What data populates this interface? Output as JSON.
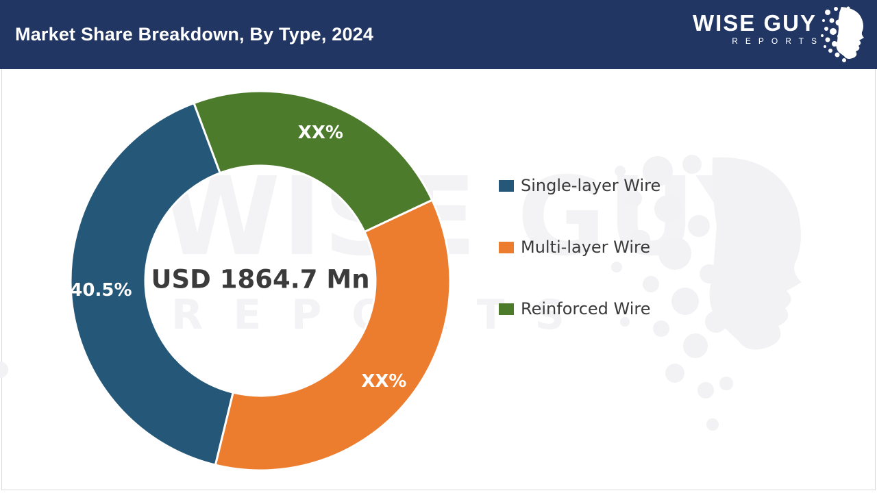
{
  "header": {
    "title": "Market Share Breakdown, By Type, 2024",
    "bg_color": "#223663",
    "logo": {
      "line1": "WISE GUY",
      "line2": "REPORTS"
    }
  },
  "chart_data": {
    "type": "pie",
    "subtype": "donut",
    "center_label": "USD 1864.7 Mn",
    "start_angle_deg": 110.5,
    "direction": "counterclockwise",
    "legend_position": "right",
    "series": [
      {
        "label": "Single-layer Wire",
        "value_pct": 40.5,
        "display_label": "40.5%",
        "color": "#255878"
      },
      {
        "label": "Multi-layer Wire",
        "value_pct": 35.8,
        "display_label": "XX%",
        "color": "#EC7D2F"
      },
      {
        "label": "Reinforced Wire",
        "value_pct": 23.7,
        "display_label": "XX%",
        "color": "#4D7B2C"
      }
    ],
    "note_colors": {
      "slice_gap_stroke": "#ffffff",
      "text_dark": "#3b3b3b"
    }
  },
  "watermark": {
    "line1": "WISE GUY",
    "line2": "REPORTS",
    "color": "#f3f3f5"
  }
}
